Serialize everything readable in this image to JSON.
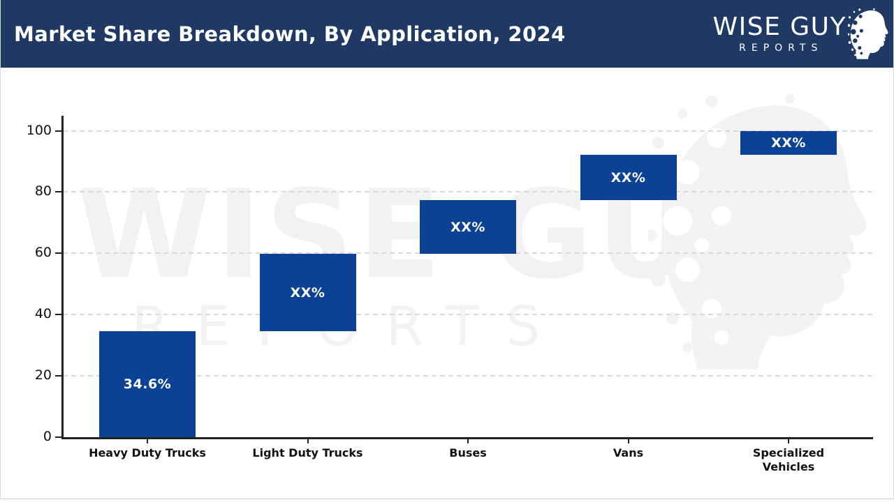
{
  "header": {
    "title": "Market Share Breakdown, By Application, 2024",
    "logo": {
      "line1": "WISE GUY",
      "line2": "REPORTS"
    }
  },
  "watermark": {
    "line1": "WISE GUY",
    "line2": "REPORTS"
  },
  "chart_data": {
    "type": "bar",
    "subtype": "waterfall",
    "title": "Market Share Breakdown, By Application, 2024",
    "xlabel": "",
    "ylabel": "",
    "categories": [
      "Heavy Duty Trucks",
      "Light Duty Trucks",
      "Buses",
      "Vans",
      "Specialized Vehicles"
    ],
    "segment_starts": [
      0,
      34.6,
      59.8,
      77.3,
      92.2
    ],
    "segment_ends": [
      34.6,
      59.8,
      77.3,
      92.2,
      100
    ],
    "values": [
      34.6,
      25.2,
      17.5,
      14.9,
      7.8
    ],
    "bar_labels": [
      "34.6%",
      "XX%",
      "XX%",
      "XX%",
      "XX%"
    ],
    "ylim": [
      0,
      100
    ],
    "yticks": [
      0,
      20,
      40,
      60,
      80,
      100
    ],
    "grid": "dashed-horizontal",
    "legend": "none"
  },
  "colors": {
    "header_bg": "#203864",
    "bar": "#0c4296",
    "axis": "#222222",
    "grid": "#d9d9d9",
    "watermark": "#f2f2f2"
  }
}
